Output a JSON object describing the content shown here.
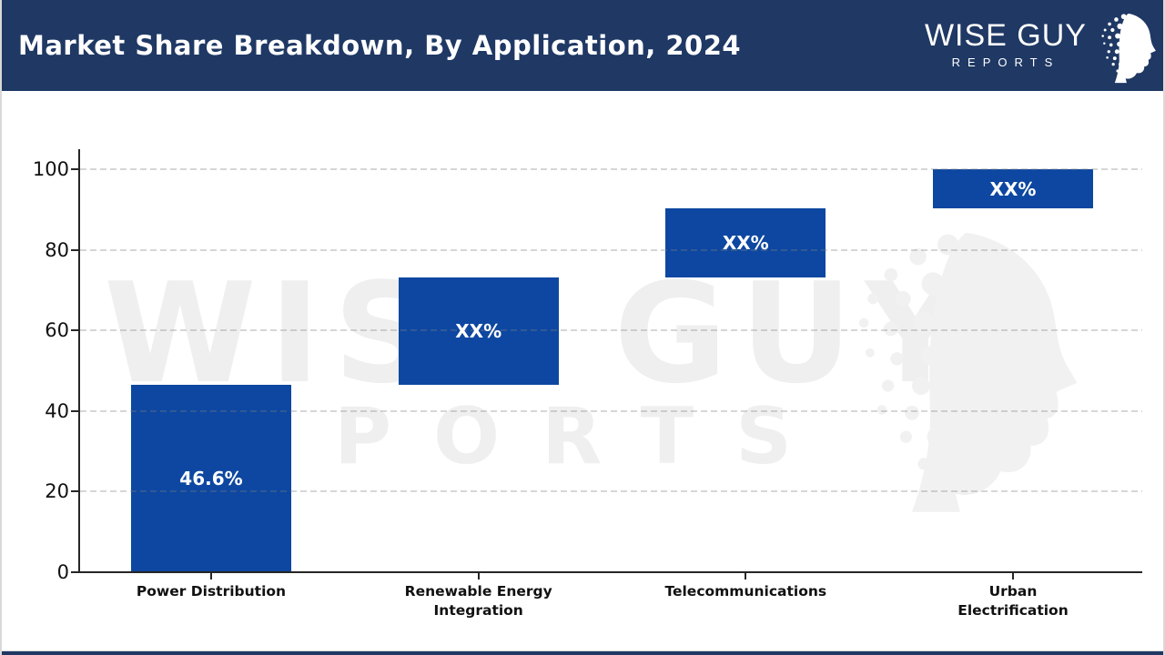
{
  "page": {
    "header": {
      "title": "Market Share Breakdown, By Application, 2024",
      "logo": {
        "line1": "WISE GUY",
        "line2": "REPORTS"
      }
    },
    "watermark": {
      "line1": "WISE GUY",
      "line2": "REPORTS"
    },
    "colors": {
      "header_bg": "#1f3864",
      "bar_blue": "#0d47a1",
      "grid_gray": "#d6d6d6",
      "axis_dark": "#262626",
      "watermark_gray": "#efefef"
    }
  },
  "chart_data": {
    "type": "bar",
    "subtype": "waterfall-market-share",
    "title": "Market Share Breakdown, By Application, 2024",
    "categories": [
      "Power Distribution",
      "Renewable Energy\nIntegration",
      "Telecommunications",
      "Urban\nElectrification"
    ],
    "segments": [
      {
        "category": "Power Distribution",
        "start": 0,
        "end": 46.6,
        "label": "46.6%"
      },
      {
        "category": "Renewable Energy Integration",
        "start": 46.6,
        "end": 73.2,
        "label": "XX%"
      },
      {
        "category": "Telecommunications",
        "start": 73.2,
        "end": 90.2,
        "label": "XX%"
      },
      {
        "category": "Urban Electrification",
        "start": 90.2,
        "end": 100,
        "label": "XX%"
      }
    ],
    "ylabel": "",
    "xlabel": "",
    "yticks": [
      0,
      20,
      40,
      60,
      80,
      100
    ],
    "ylim": [
      0,
      105
    ],
    "grid": "horizontal-dashed",
    "legend": "none",
    "bar_color": "#0d47a1"
  }
}
